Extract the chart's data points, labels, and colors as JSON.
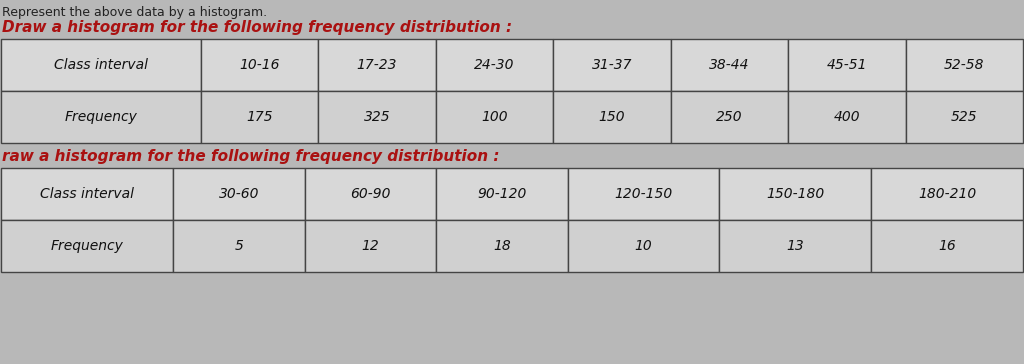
{
  "title0": "Represent the above data by a histogram.",
  "title1": "Draw a histogram for the following frequency distribution :",
  "title2": "raw a histogram for the following frequency distribution :",
  "table1": {
    "headers": [
      "Class interval",
      "10-16",
      "17-23",
      "24-30",
      "31-37",
      "38-44",
      "45-51",
      "52-58"
    ],
    "row2": [
      "Frequency",
      "175",
      "325",
      "100",
      "150",
      "250",
      "400",
      "525"
    ]
  },
  "table2": {
    "headers": [
      "Class interval",
      "30-60",
      "60-90",
      "90-120",
      "120-150",
      "150-180",
      "180-210"
    ],
    "row2": [
      "Frequency",
      "5",
      "12",
      "18",
      "10",
      "13",
      "16"
    ]
  },
  "bg_color": "#b8b8b8",
  "cell_bg_header": "#d8d8d8",
  "cell_bg_data": "#d0d0d0",
  "border_color": "#444444",
  "title_color": "#aa1111",
  "title0_color": "#222222",
  "table_text_color": "#111111",
  "col_ratios1": [
    1.7,
    1.0,
    1.0,
    1.0,
    1.0,
    1.0,
    1.0,
    1.0
  ],
  "col_ratios2": [
    1.7,
    1.3,
    1.3,
    1.3,
    1.5,
    1.5,
    1.5
  ]
}
